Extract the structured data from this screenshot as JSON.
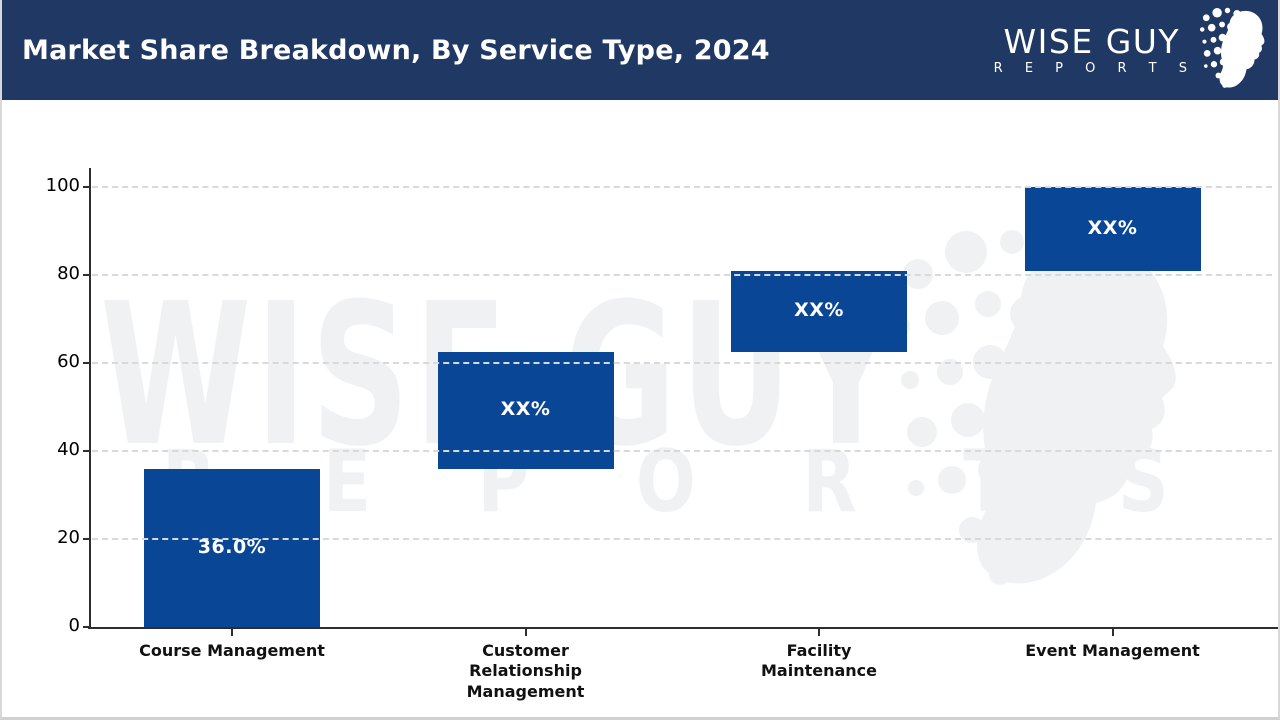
{
  "header": {
    "title": "Market Share Breakdown, By Service Type, 2024",
    "logo": {
      "line1": "WISE GUY",
      "line2": "R E P O R T S",
      "icon": "dotted-head-profile-icon"
    }
  },
  "watermark": {
    "line1": "WISE GUY",
    "line2": "R E P O R T S"
  },
  "chart_data": {
    "type": "bar",
    "subtype": "waterfall",
    "title": "Market Share Breakdown, By Service Type, 2024",
    "categories": [
      "Course Management",
      "Customer\nRelationship\nManagement",
      "Facility\nMaintenance",
      "Event Management"
    ],
    "segments": [
      {
        "category": "Course Management",
        "label": "36.0%",
        "start": 0,
        "end": 36
      },
      {
        "category": "Customer Relationship Management",
        "label": "XX%",
        "start": 36,
        "end": 62.5
      },
      {
        "category": "Facility Maintenance",
        "label": "XX%",
        "start": 62.5,
        "end": 81
      },
      {
        "category": "Event Management",
        "label": "XX%",
        "start": 81,
        "end": 100
      }
    ],
    "yticks": [
      0,
      20,
      40,
      60,
      80,
      100
    ],
    "ylim": [
      0,
      103.9
    ],
    "xlabel": "",
    "ylabel": "",
    "legend": null,
    "grid": true,
    "grid_style": "dashed",
    "gridlines_above_bars": true,
    "colors": {
      "bar": "#0a4696",
      "bar_label_text": "#ffffff",
      "gridline": "#d9d9d9",
      "axis": "#2e2e2e",
      "tick_label": "#000000",
      "header_bg": "#203864",
      "header_text": "#ffffff",
      "watermark": "#f0f1f3"
    }
  }
}
